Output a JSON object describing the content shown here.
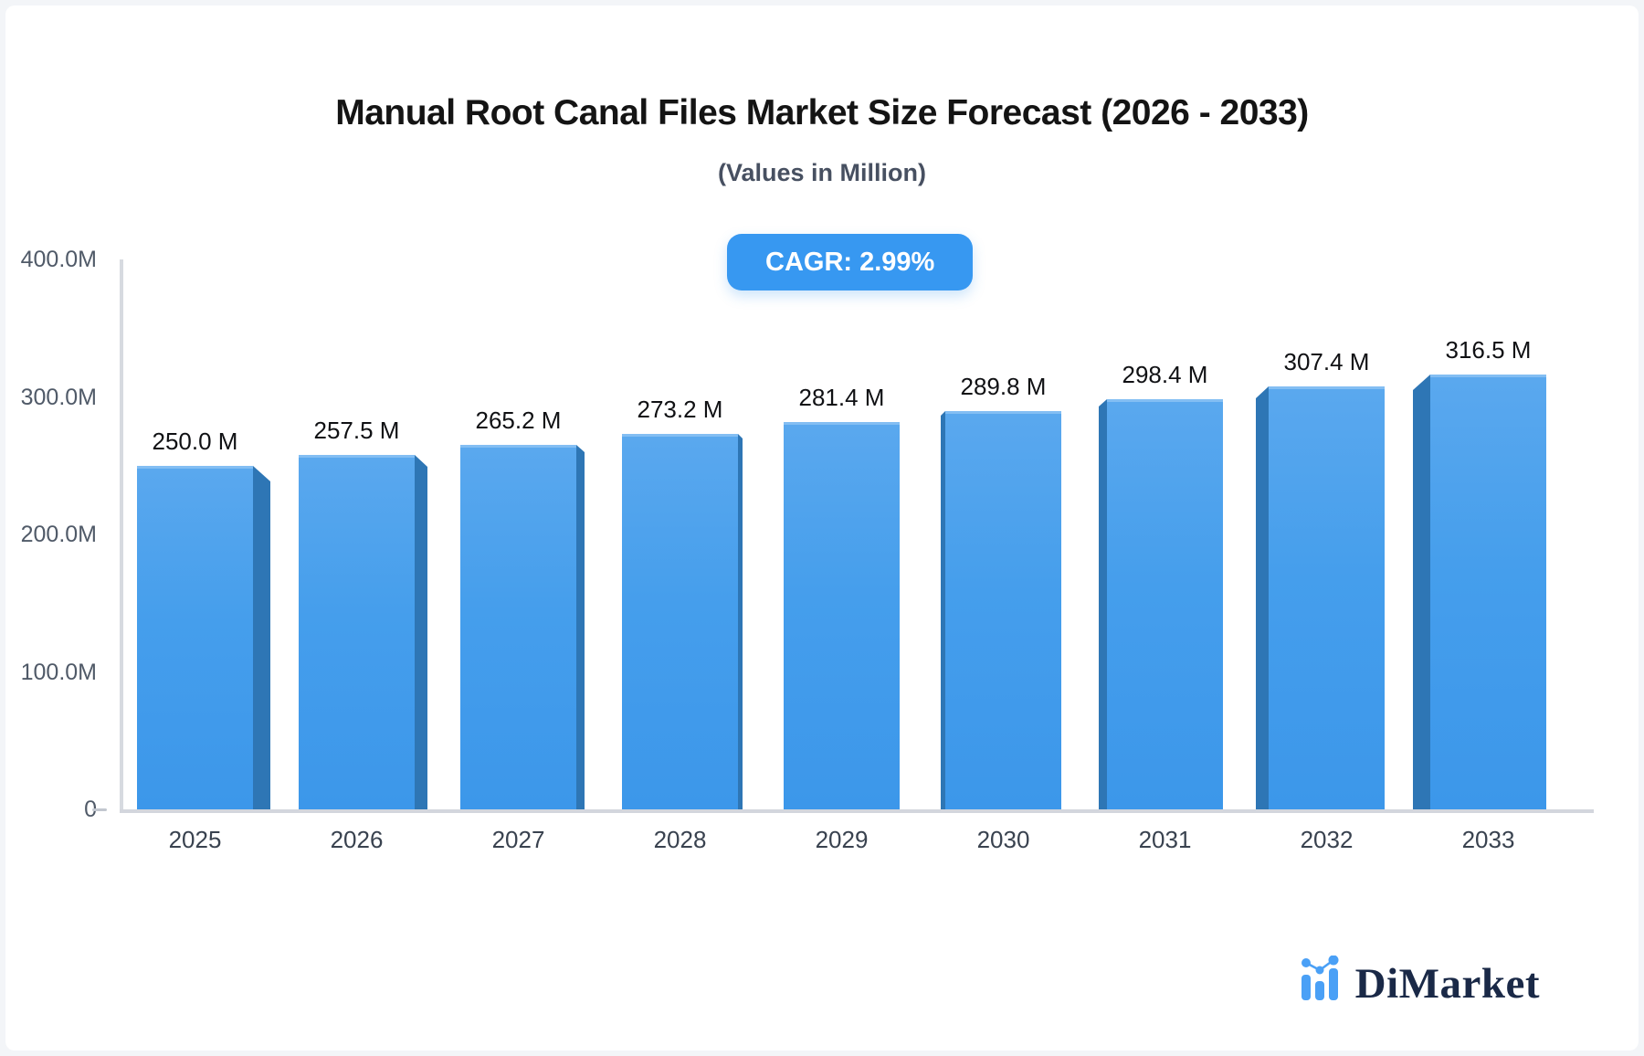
{
  "page": {
    "title": "Manual Root Canal Files Market Size Forecast (2026 - 2033)",
    "subtitle": "(Values in Million)",
    "cagr_label": "CAGR: 2.99%",
    "brand_name": "DiMarket"
  },
  "colors": {
    "bar_face_top": "#5aa8ee",
    "bar_face_bottom": "#3c97ea",
    "bar_side": "#2e76b5",
    "badge_blue": "#3798f1",
    "axis_gray": "#d5d8de",
    "brand_navy": "#1a2947",
    "brand_blue": "#4aa0f6"
  },
  "icons": {
    "brand_logo": "bar-chart-trend-icon"
  },
  "chart_data": {
    "type": "bar",
    "title": "Manual Root Canal Files Market Size Forecast (2026 - 2033)",
    "subtitle": "(Values in Million)",
    "annotation": "CAGR: 2.99%",
    "categories": [
      "2025",
      "2026",
      "2027",
      "2028",
      "2029",
      "2030",
      "2031",
      "2032",
      "2033"
    ],
    "values": [
      250.0,
      257.5,
      265.2,
      273.2,
      281.4,
      289.8,
      298.4,
      307.4,
      316.5
    ],
    "value_labels": [
      "250.0 M",
      "257.5 M",
      "265.2 M",
      "273.2 M",
      "281.4 M",
      "289.8 M",
      "298.4 M",
      "307.4 M",
      "316.5 M"
    ],
    "unit": "Million",
    "xlabel": "",
    "ylabel": "",
    "ylim": [
      0,
      400
    ],
    "yticks": [
      {
        "label": "0",
        "value": 0
      },
      {
        "label": "100.0M",
        "value": 100
      },
      {
        "label": "200.0M",
        "value": 200
      },
      {
        "label": "300.0M",
        "value": 300
      },
      {
        "label": "400.0M",
        "value": 400
      }
    ],
    "grid": false,
    "legend": false,
    "style": "3d-perspective-bars"
  }
}
